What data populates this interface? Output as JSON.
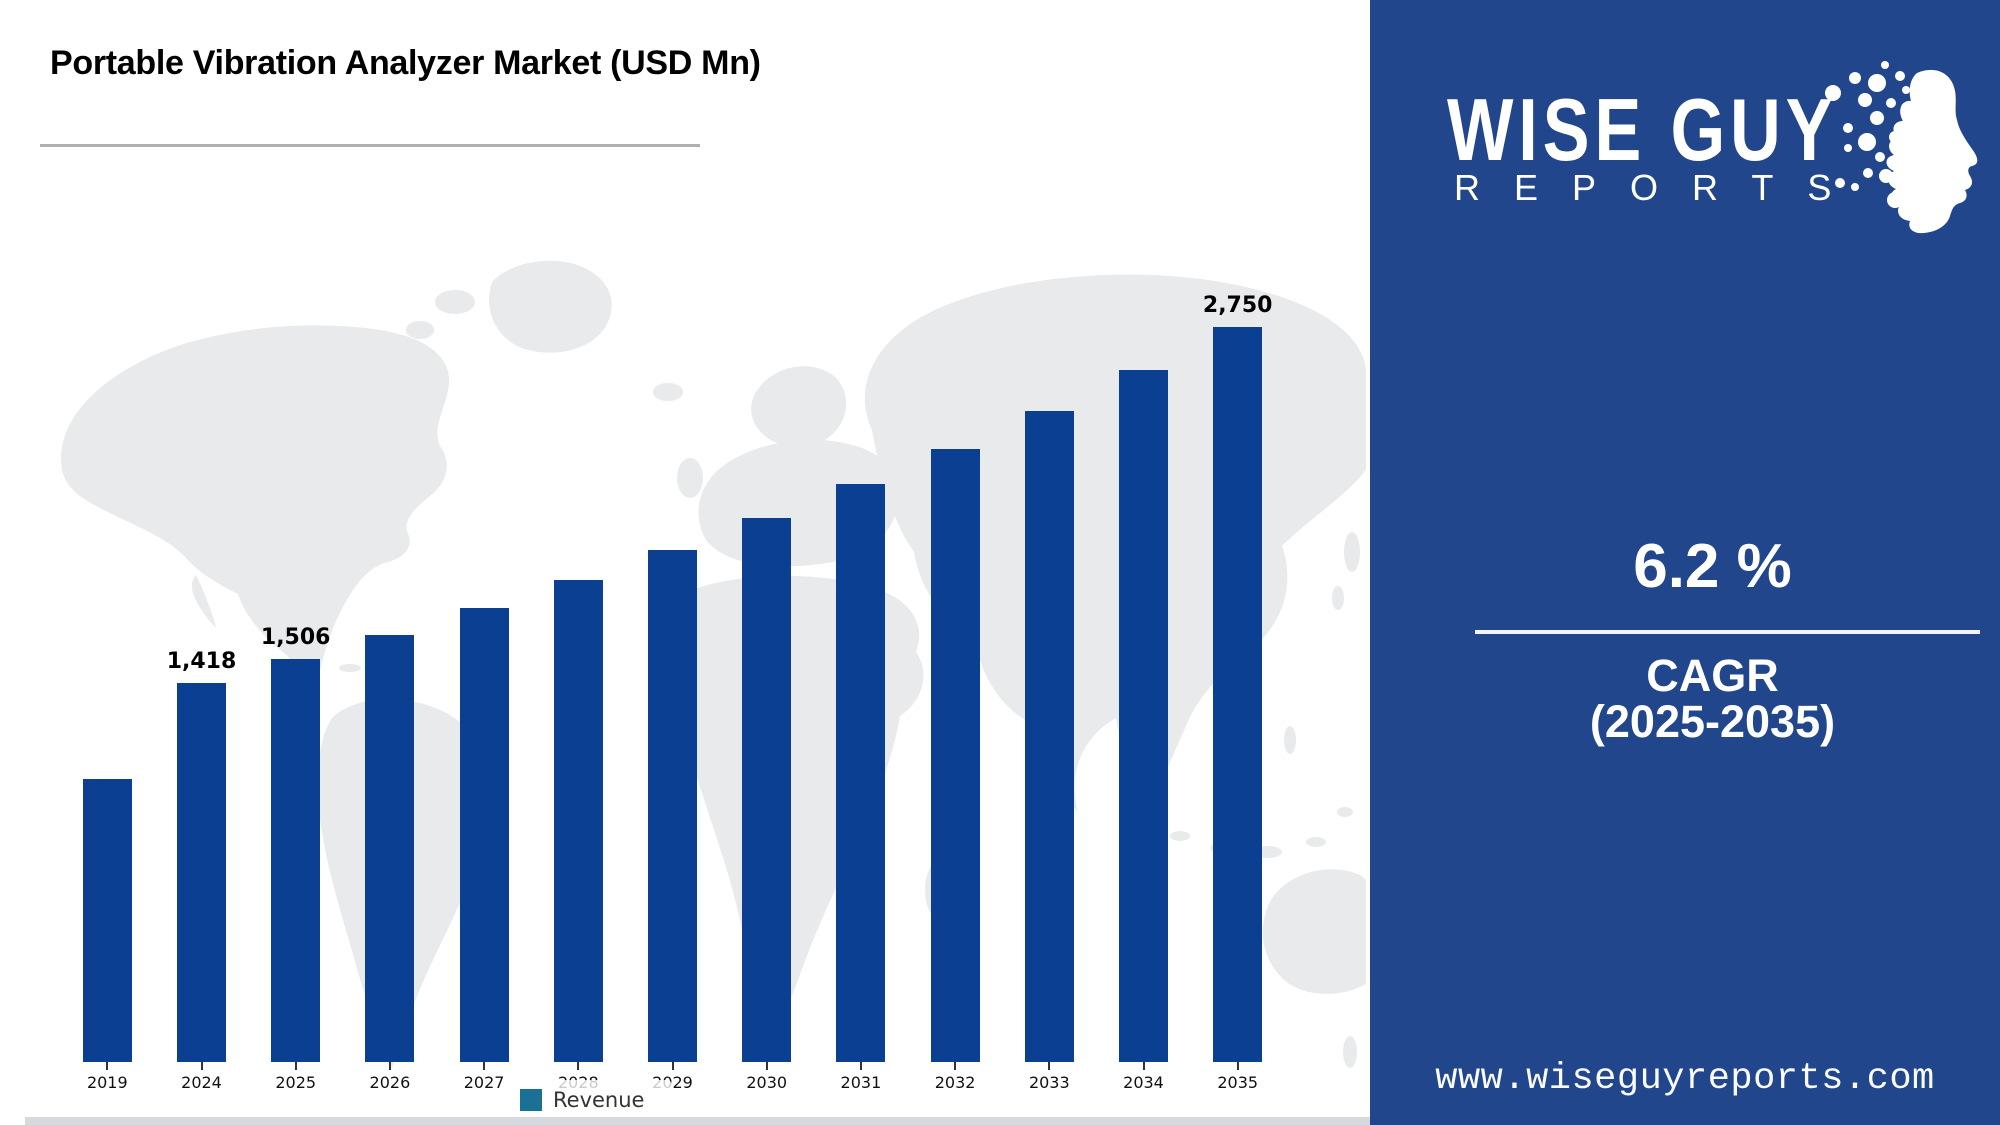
{
  "header": {
    "title": "Portable Vibration Analyzer Market (USD Mn)"
  },
  "chart_data": {
    "type": "bar",
    "title": "Portable Vibration Analyzer Market (USD Mn)",
    "categories": [
      "2019",
      "2024",
      "2025",
      "2026",
      "2027",
      "2028",
      "2029",
      "2030",
      "2031",
      "2032",
      "2033",
      "2034",
      "2035"
    ],
    "values": [
      1060,
      1418,
      1506,
      1599,
      1699,
      1804,
      1916,
      2034,
      2161,
      2294,
      2437,
      2588,
      2750
    ],
    "data_labels": {
      "2024": "1,418",
      "2025": "1,506",
      "2035": "2,750"
    },
    "xlabel": "",
    "ylabel": "",
    "ylim": [
      0,
      2900
    ],
    "grid": false,
    "legend_position": "bottom",
    "series_name": "Revenue"
  },
  "legend": {
    "label": "Revenue"
  },
  "panel": {
    "logo_line1": "WISE GUY",
    "logo_line2": "REPORTS",
    "cagr_value": "6.2 %",
    "cagr_label": "CAGR",
    "cagr_range": "(2025-2035)",
    "website": "www.wiseguyreports.com"
  },
  "colors": {
    "bar": "#0a3f92",
    "panel_bg": "#21468b",
    "map": "#e8eaec",
    "legend_swatch": "#1b7095",
    "bottom_strip": "#d6d9dd"
  }
}
